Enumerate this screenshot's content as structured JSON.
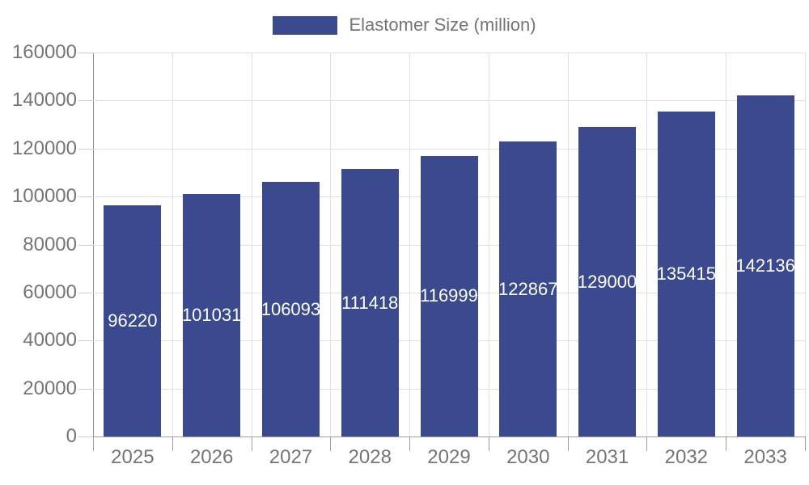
{
  "legend": {
    "label": "Elastomer Size (million)"
  },
  "colors": {
    "bar": "#3b4a8e",
    "axis_label": "#757575",
    "grid_line": "#e0e0e0",
    "axis_line": "#9e9e9e",
    "bar_label": "#ffffff"
  },
  "chart_data": {
    "type": "bar",
    "title": "",
    "categories": [
      "2025",
      "2026",
      "2027",
      "2028",
      "2029",
      "2030",
      "2031",
      "2032",
      "2033"
    ],
    "series": [
      {
        "name": "Elastomer Size (million)",
        "values": [
          96220,
          101031,
          106093,
          111418,
          116999,
          122867,
          129000,
          135415,
          142136
        ]
      }
    ],
    "xlabel": "",
    "ylabel": "",
    "ylim": [
      0,
      160000
    ],
    "ytick_step": 20000,
    "ytick_labels": [
      "0",
      "20000",
      "40000",
      "60000",
      "80000",
      "100000",
      "120000",
      "140000",
      "160000"
    ],
    "grid": true,
    "legend_position": "top-center",
    "bar_labels": "inside-center-white"
  }
}
